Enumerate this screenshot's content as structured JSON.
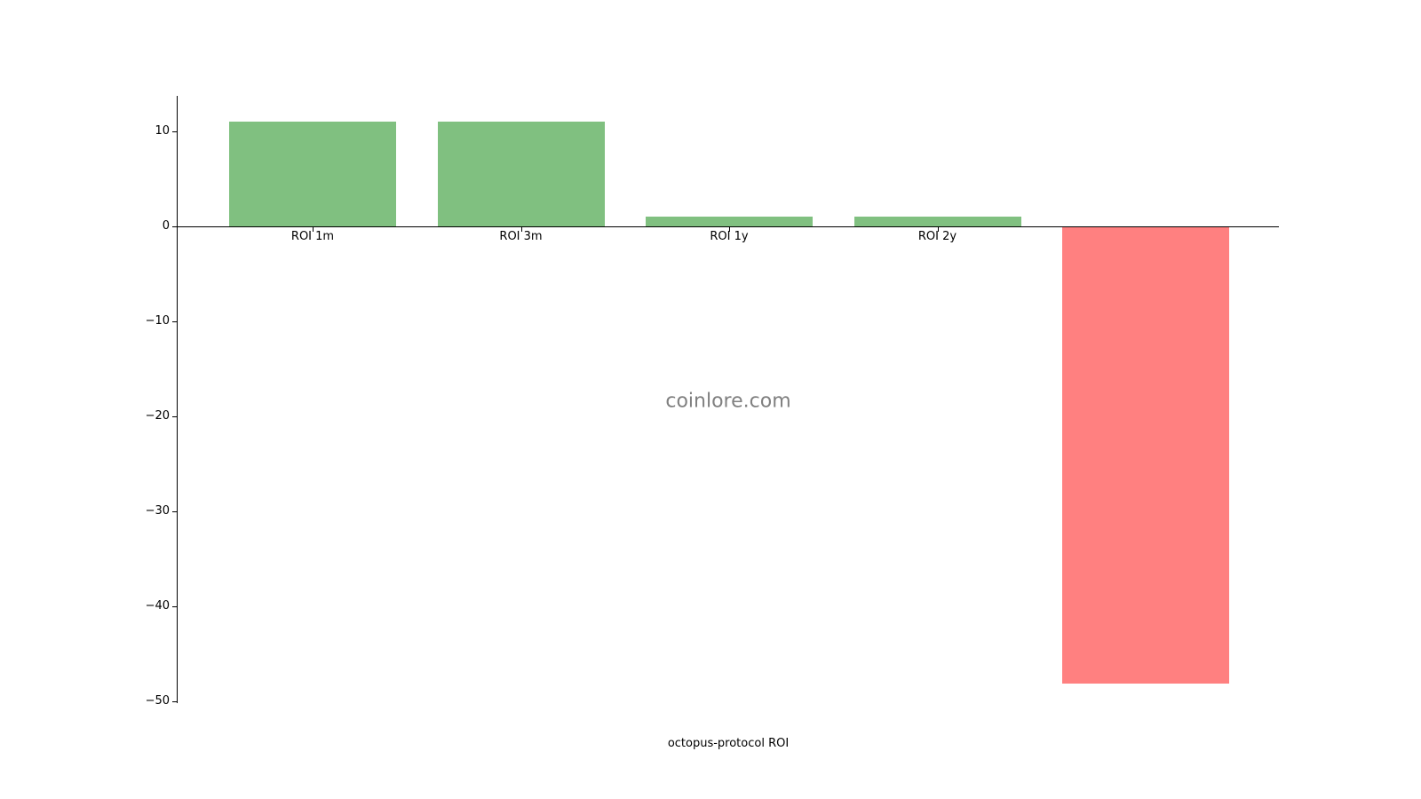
{
  "watermark": {
    "text": "coinlore.com",
    "color": "#808080"
  },
  "chart_data": {
    "type": "bar",
    "categories": [
      "ROI 1m",
      "ROI 3m",
      "ROI 1y",
      "ROI 2y",
      ""
    ],
    "values": [
      11,
      11,
      1,
      1,
      -48
    ],
    "title": "",
    "xlabel": "octopus-protocol ROI",
    "ylabel": "",
    "ylim": [
      -51,
      14
    ],
    "ytick_values": [
      10,
      0,
      -10,
      -20,
      -30,
      -40,
      -50
    ],
    "ytick_labels": [
      "10",
      "0",
      "−10",
      "−20",
      "−30",
      "−40",
      "−50"
    ],
    "grid": false,
    "legend": "none",
    "colors": {
      "positive_bar": "#80c080",
      "negative_bar": "#ff8080",
      "axis": "#000000"
    }
  }
}
